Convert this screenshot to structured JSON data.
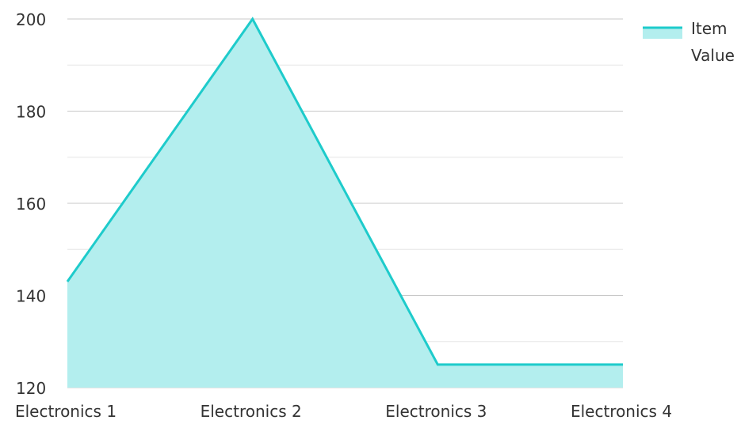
{
  "chart_data": {
    "type": "area",
    "categories": [
      "Electronics 1",
      "Electronics 2",
      "Electronics 3",
      "Electronics 4"
    ],
    "series": [
      {
        "name": "Item Value",
        "values": [
          143,
          200,
          125,
          125
        ]
      }
    ],
    "y_ticks": [
      120,
      140,
      160,
      180,
      200
    ],
    "ylim": [
      120,
      200
    ],
    "grid": true,
    "legend_position": "top-right",
    "colors": {
      "line": "#1ecbcb",
      "fill": "#b3eeee",
      "grid_major": "#c8c8c8",
      "grid_minor": "#e6e6e6",
      "text": "#333333"
    },
    "legend": {
      "line1": "Item",
      "line2": "Value"
    }
  }
}
